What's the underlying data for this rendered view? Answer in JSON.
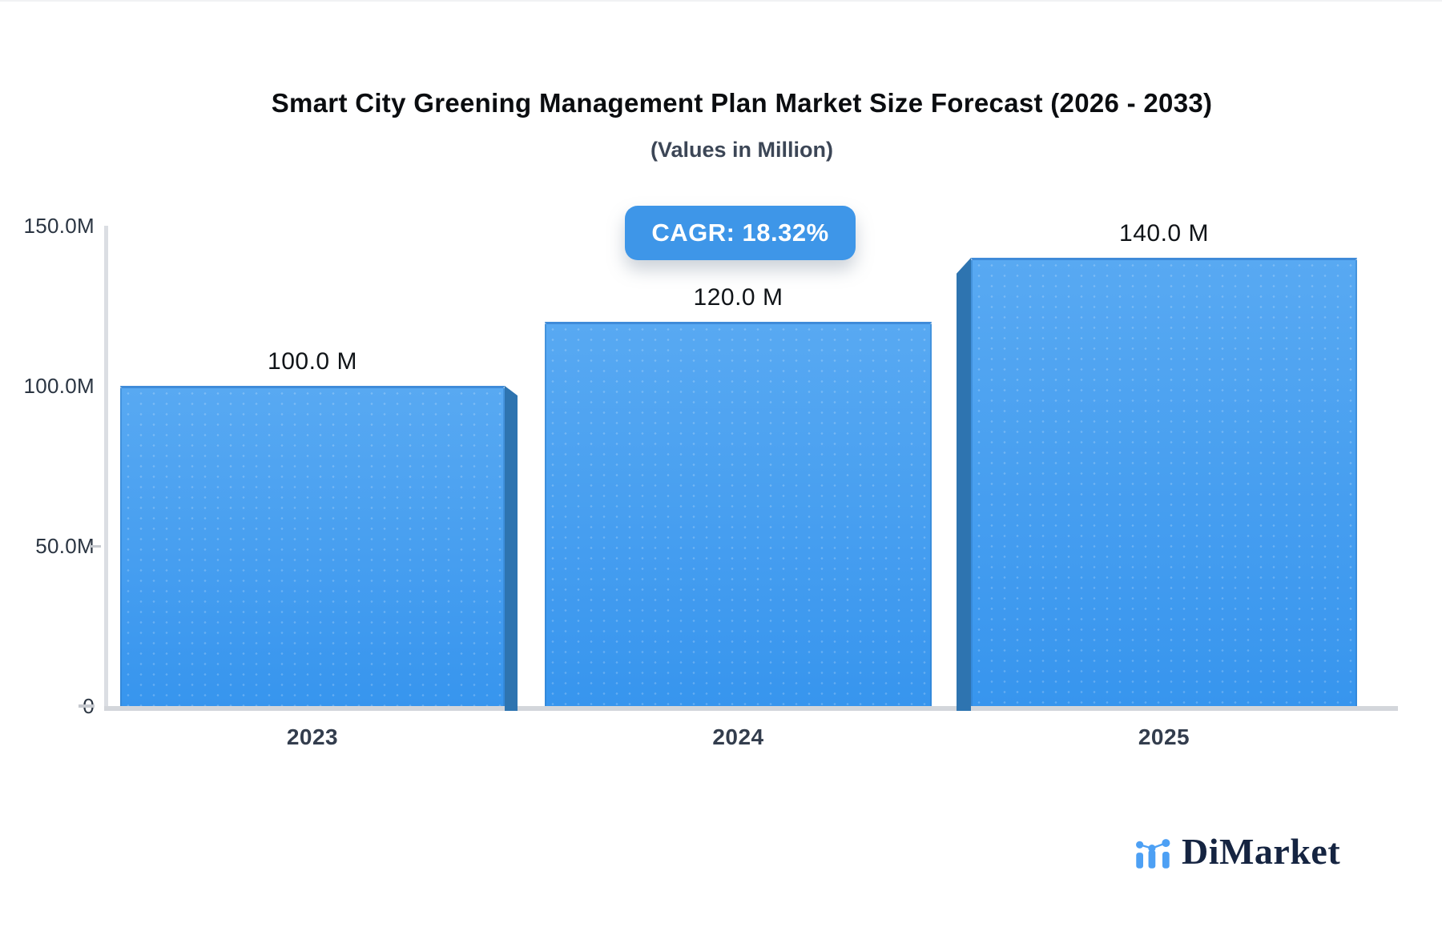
{
  "title": "Smart City Greening Management Plan Market Size Forecast (2026 - 2033)",
  "subtitle": "(Values in Million)",
  "badge": {
    "label": "CAGR: 18.32%",
    "color": "#3e96e8"
  },
  "chart_data": {
    "type": "bar",
    "categories": [
      "2023",
      "2024",
      "2025"
    ],
    "values": [
      100.0,
      120.0,
      140.0
    ],
    "value_labels": [
      "100.0 M",
      "120.0 M",
      "140.0 M"
    ],
    "title": "Smart City Greening Management Plan Market Size Forecast (2026 - 2033)",
    "subtitle": "(Values in Million)",
    "unit": "Million",
    "xlabel": "",
    "ylabel": "",
    "ylim": [
      0,
      150
    ],
    "yticks": [
      {
        "value": 0,
        "label": "0"
      },
      {
        "value": 50,
        "label": "50.0M"
      },
      {
        "value": 100,
        "label": "100.0M"
      },
      {
        "value": 150,
        "label": "150.0M"
      }
    ],
    "grid": false,
    "legend": "none",
    "annotations": [
      "CAGR: 18.32%"
    ],
    "bar_color_top": "#58a9f2",
    "bar_color_bottom": "#3795ee",
    "bar_side_color": "#2e74b0"
  },
  "watermark": {
    "brand": "DiMarket",
    "icon": "dimarket-logo-icon",
    "accent": "#4da0f4",
    "text_color": "#152441"
  },
  "colors": {
    "axis": "#d3d6db",
    "tick_text": "#2b3542",
    "title_text": "#0b0d10",
    "subtitle_text": "#3c4656"
  }
}
